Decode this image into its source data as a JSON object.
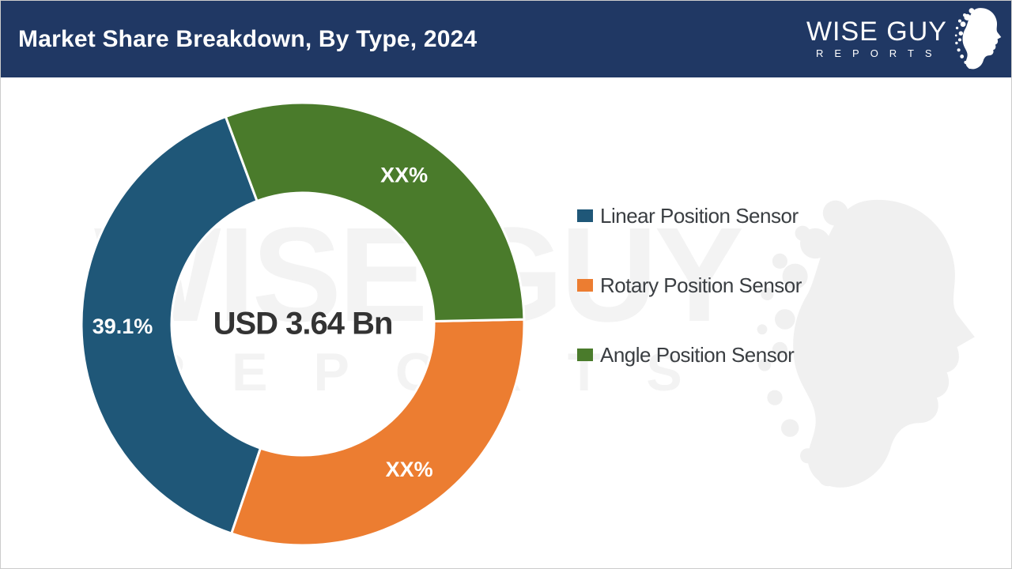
{
  "header": {
    "title": "Market Share Breakdown, By Type, 2024",
    "logo": {
      "line1": "WISE GUY",
      "line2": "REPORTS"
    }
  },
  "watermark": {
    "line1": "WISE GUY",
    "line2": "REPORTS"
  },
  "chart_data": {
    "type": "pie",
    "subtype": "donut",
    "title": "Market Share Breakdown, By Type, 2024",
    "center_label": "USD 3.64 Bn",
    "legend_position": "right",
    "segments": [
      {
        "name": "Linear Position Sensor",
        "color": "#1F5778",
        "value_pct": 39.1,
        "label": "39.1%",
        "start_angle_deg": 198.8,
        "sweep_deg": 140.8
      },
      {
        "name": "Rotary Position Sensor",
        "color": "#EC7D31",
        "value_pct": 30.6,
        "label": "XX%",
        "start_angle_deg": 88.8,
        "sweep_deg": 110.0
      },
      {
        "name": "Angle Position Sensor",
        "color": "#4A7B2B",
        "value_pct": 30.3,
        "label": "XX%",
        "start_angle_deg": 339.6,
        "sweep_deg": 109.2
      }
    ]
  },
  "legend": {
    "items": [
      {
        "label": "Linear Position Sensor",
        "color": "#1F5778"
      },
      {
        "label": "Rotary Position Sensor",
        "color": "#EC7D31"
      },
      {
        "label": "Angle Position Sensor",
        "color": "#4A7B2B"
      }
    ]
  },
  "colors": {
    "header_bg": "#203864",
    "page_bg": "#FFFFFF",
    "border": "#CCCCCC",
    "center_text": "#333333",
    "legend_text": "#3A3E42",
    "watermark": "#F3F3F3"
  }
}
